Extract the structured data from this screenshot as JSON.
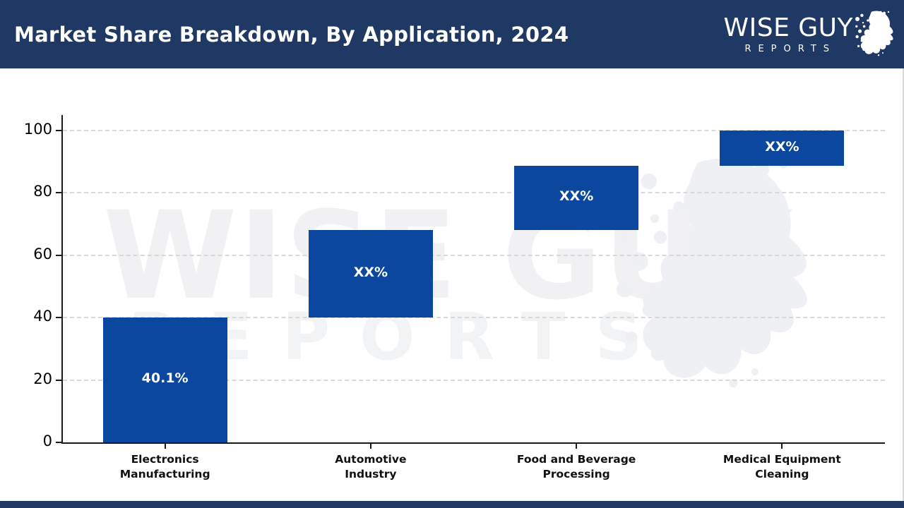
{
  "header": {
    "title": "Market Share Breakdown, By Application, 2024",
    "logo": {
      "wordmark": "WISE GUY",
      "subtext": "REPORTS"
    }
  },
  "watermark": {
    "line1": "WISE GUY",
    "line2": "REPORTS"
  },
  "chart_data": {
    "type": "bar",
    "subtype": "waterfall",
    "title": "Market Share Breakdown, By Application, 2024",
    "categories": [
      "Electronics Manufacturing",
      "Automotive Industry",
      "Food and Beverage Processing",
      "Medical Equipment Cleaning"
    ],
    "segments": [
      {
        "category": "Electronics Manufacturing",
        "category_lines": [
          "Electronics",
          "Manufacturing"
        ],
        "start": 0,
        "end": 40.1,
        "value": 40.1,
        "label": "40.1%"
      },
      {
        "category": "Automotive Industry",
        "category_lines": [
          "Automotive",
          "Industry"
        ],
        "start": 40.1,
        "end": 68.2,
        "value": 28.1,
        "label": "XX%"
      },
      {
        "category": "Food and Beverage Processing",
        "category_lines": [
          "Food and Beverage",
          "Processing"
        ],
        "start": 68.2,
        "end": 88.6,
        "value": 20.4,
        "label": "XX%"
      },
      {
        "category": "Medical Equipment Cleaning",
        "category_lines": [
          "Medical Equipment",
          "Cleaning"
        ],
        "start": 88.6,
        "end": 100,
        "value": 11.4,
        "label": "XX%"
      }
    ],
    "yticks": [
      0,
      20,
      40,
      60,
      80,
      100
    ],
    "ylim": [
      0,
      100
    ],
    "xlabel": "",
    "ylabel": "",
    "grid": "horizontal-dashed",
    "legend": "none",
    "bar_color": "#0c479f",
    "bar_label_color": "#ffffff"
  },
  "colors": {
    "header_bg": "#1f3864",
    "footer_bg": "#1f3864",
    "bar": "#0c479f",
    "grid_line": "#d9d9d9",
    "axis_line": "#1a1a1a",
    "watermark": "#f1f1f4"
  }
}
